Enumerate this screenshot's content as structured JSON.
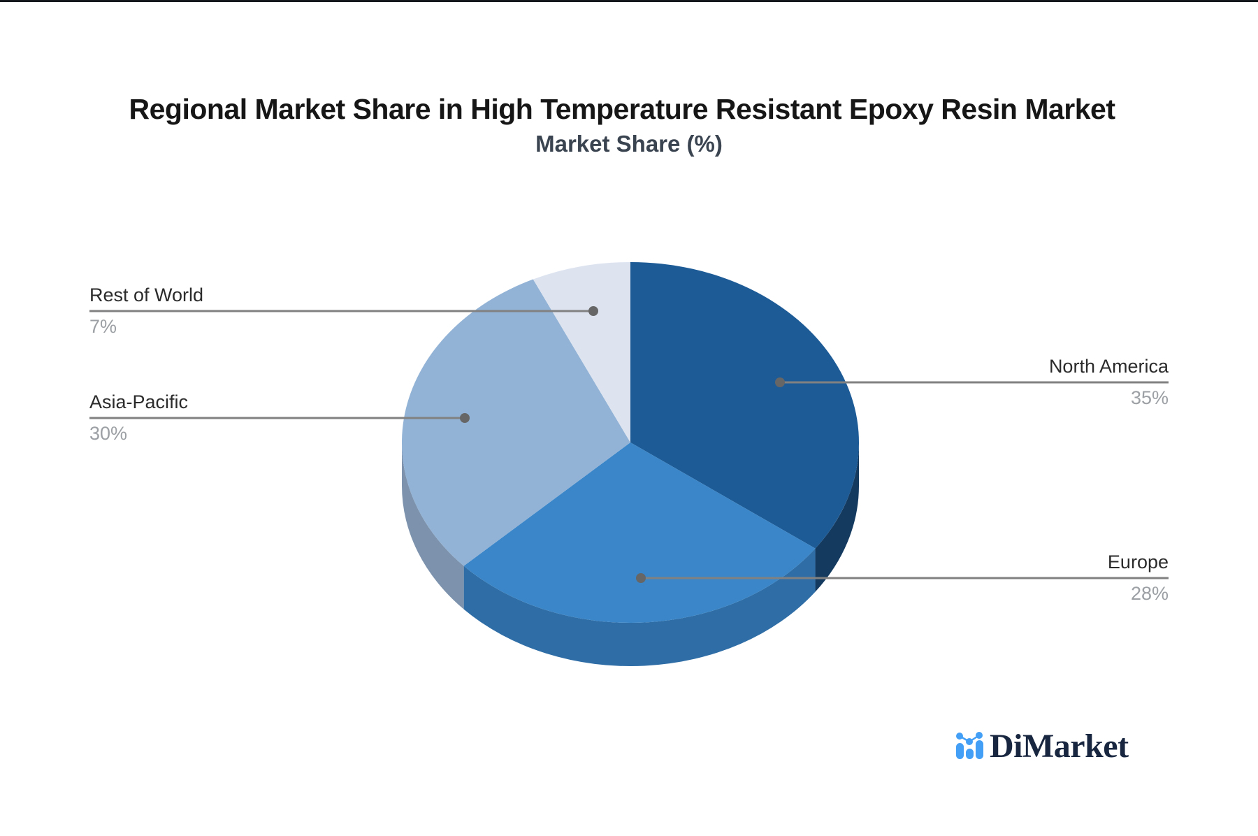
{
  "page": {
    "title": "Regional Market Share in High Temperature Resistant Epoxy Resin Market",
    "subtitle": "Market Share (%)"
  },
  "logo": {
    "text": "DiMarket",
    "icon": "bar-line-chart-icon",
    "icon_color": "#429FF5",
    "text_color": "#19263F"
  },
  "colors": {
    "background": "#FFFFFF",
    "top_edge": "#15181C",
    "title": "#161616",
    "subtitle": "#3A4350",
    "label_name": "#2B2B2B",
    "label_value": "#9CA0A4",
    "leader_line": "#818181",
    "leader_dot": "#666666"
  },
  "chart_data": {
    "type": "pie",
    "style": "3d",
    "title": "Regional Market Share in High Temperature Resistant Epoxy Resin Market",
    "subtitle": "Market Share (%)",
    "unit": "%",
    "direction": "clockwise",
    "start_angle_deg": 0,
    "legend": "none",
    "labels_style": "callout-lines",
    "slices": [
      {
        "name": "North America",
        "value": 35,
        "value_label": "35%",
        "color": "#1D5B97",
        "side_color": "#143A60",
        "callout_side": "right"
      },
      {
        "name": "Europe",
        "value": 28,
        "value_label": "28%",
        "color": "#3A86C8",
        "side_color": "#2E6DA6",
        "callout_side": "right"
      },
      {
        "name": "Asia-Pacific",
        "value": 30,
        "value_label": "30%",
        "color": "#92B3D6",
        "side_color": "#7D93AD",
        "callout_side": "left"
      },
      {
        "name": "Rest of World",
        "value": 7,
        "value_label": "7%",
        "color": "#DDE4F0",
        "side_color": null,
        "callout_side": "left"
      }
    ]
  }
}
